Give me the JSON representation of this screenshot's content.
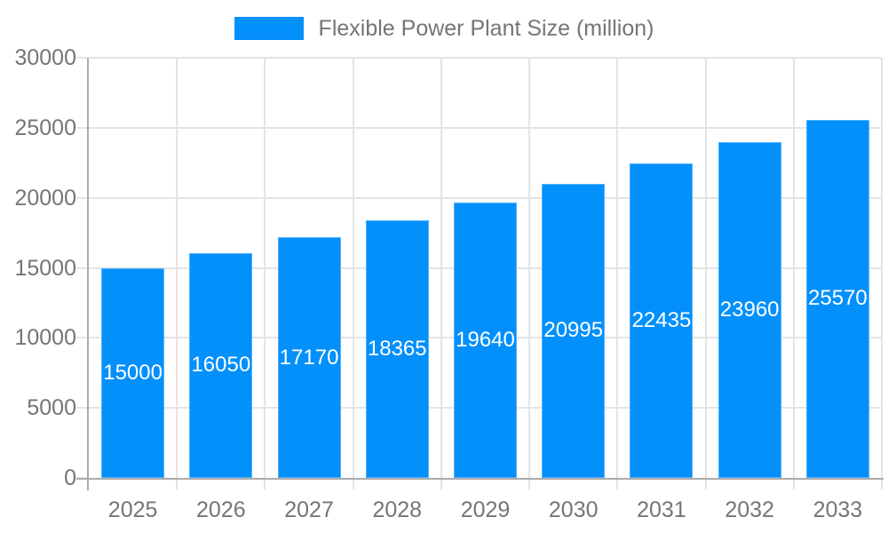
{
  "legend": {
    "label": "Flexible Power Plant Size (million)"
  },
  "colors": {
    "bar": "#0490FB",
    "bar_stroke": "#4FB1FD",
    "bar_label_text": "#FFFFFF",
    "axis_text": "#757575",
    "gridline": "#E4E4E4",
    "axis_line": "#ABABAB",
    "background": "#FFFFFF"
  },
  "chart_data": {
    "type": "bar",
    "title": "Flexible Power Plant Size (million)",
    "categories": [
      "2025",
      "2026",
      "2027",
      "2028",
      "2029",
      "2030",
      "2031",
      "2032",
      "2033"
    ],
    "series": [
      {
        "name": "Flexible Power Plant Size (million)",
        "values": [
          15000,
          16050,
          17170,
          18365,
          19640,
          20995,
          22435,
          23960,
          25570
        ]
      }
    ],
    "bar_value_labels": [
      "15000",
      "16050",
      "17170",
      "18365",
      "19640",
      "20995",
      "22435",
      "23960",
      "25570"
    ],
    "bar_value_label_position": "inside-center",
    "xlabel": "",
    "ylabel": "",
    "ylim": [
      0,
      30000
    ],
    "yticks": [
      0,
      5000,
      10000,
      15000,
      20000,
      25000,
      30000
    ],
    "ytick_labels": [
      "0",
      "5000",
      "10000",
      "15000",
      "20000",
      "25000",
      "30000"
    ],
    "grid": true,
    "legend_position": "top-center"
  }
}
